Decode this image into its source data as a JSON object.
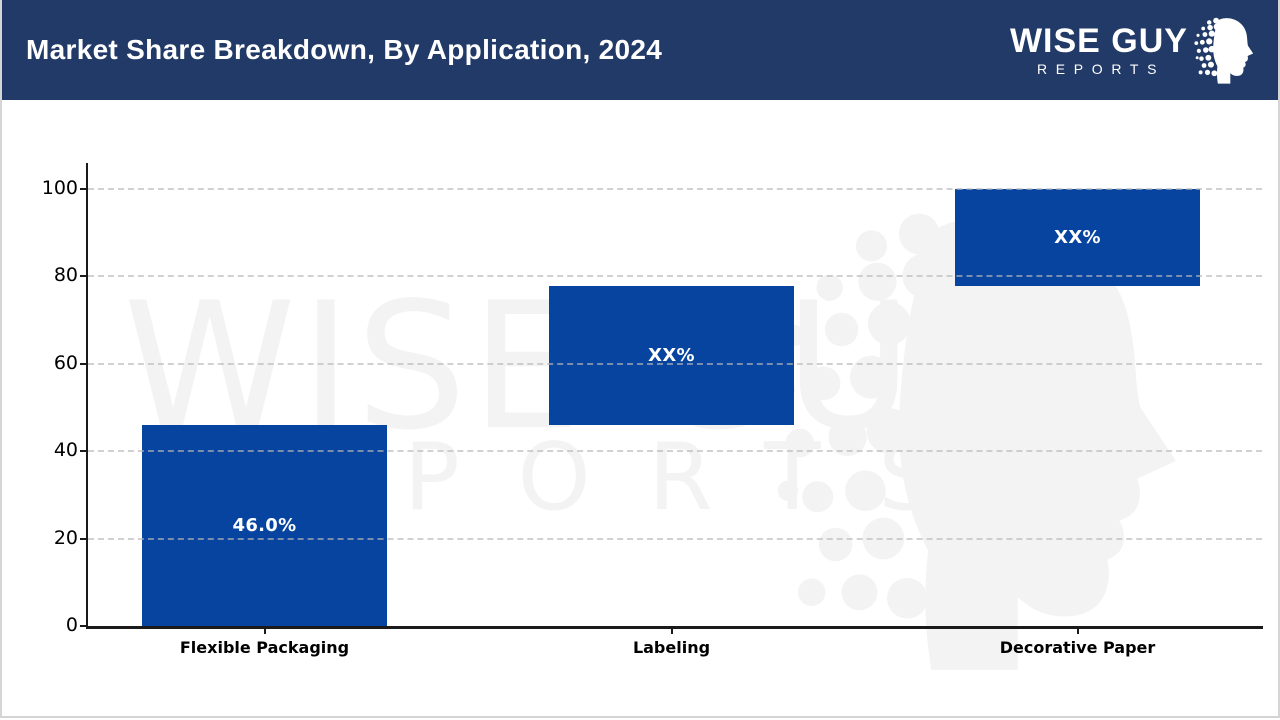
{
  "header": {
    "title": "Market Share Breakdown, By Application, 2024",
    "logo": {
      "primary": "WISE GUY",
      "secondary": "REPORTS"
    }
  },
  "watermark": {
    "primary": "WISE GUY",
    "secondary": "REPORTS"
  },
  "colors": {
    "header_bg": "#213a67",
    "bar": "#07449f",
    "bar_label_text": "#ffffff",
    "gridline": "#d5d5d5",
    "axis": "#1a1a1a",
    "watermark": "#f3f3f3",
    "title_text": "#ffffff"
  },
  "chart_data": {
    "type": "bar",
    "variant": "waterfall",
    "title": "Market Share Breakdown, By Application, 2024",
    "categories": [
      "Flexible Packaging",
      "Labeling",
      "Decorative Paper"
    ],
    "segments": [
      {
        "category": "Flexible Packaging",
        "start": 0,
        "end": 46,
        "label": "46.0%"
      },
      {
        "category": "Labeling",
        "start": 46,
        "end": 77.8,
        "label": "XX%"
      },
      {
        "category": "Decorative Paper",
        "start": 77.8,
        "end": 100,
        "label": "XX%"
      }
    ],
    "xlabel": "",
    "ylabel": "",
    "ylim": [
      0,
      100
    ],
    "yticks": [
      0,
      20,
      40,
      60,
      80,
      100
    ],
    "grid": "horizontal-dashed",
    "legend": "none"
  }
}
